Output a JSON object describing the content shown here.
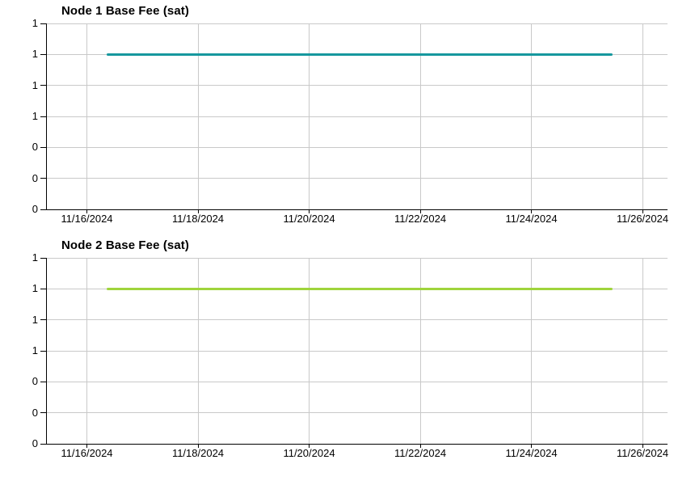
{
  "page": {
    "background_color": "#ffffff",
    "gridline_color": "#c9c9c9",
    "axis_color": "#000000",
    "text_color": "#000000"
  },
  "chart_data": [
    {
      "type": "line",
      "title": "Node 1 Base Fee (sat)",
      "xlabel": "",
      "ylabel": "",
      "grid": true,
      "legend": "none",
      "x_axis": {
        "unit": "date",
        "tick_labels": [
          "11/16/2024",
          "11/18/2024",
          "11/20/2024",
          "11/22/2024",
          "11/24/2024",
          "11/26/2024"
        ],
        "tick_positions_days": [
          0,
          2,
          4,
          6,
          8,
          10
        ],
        "range_days": [
          -0.72,
          10.45
        ]
      },
      "y_axis": {
        "tick_labels": [
          "1",
          "1",
          "1",
          "1",
          "0",
          "0",
          "0"
        ],
        "tick_values": [
          1.2,
          1.0,
          0.8,
          0.6,
          0.4,
          0.2,
          0
        ],
        "range": [
          0,
          1.2
        ]
      },
      "series": [
        {
          "name": "Node 1 base fee",
          "color": "#16989e",
          "constant_value_sat": 1,
          "points": [
            {
              "x_day": 0.35,
              "y": 1
            },
            {
              "x_day": 9.46,
              "y": 1
            }
          ]
        }
      ]
    },
    {
      "type": "line",
      "title": "Node 2 Base Fee (sat)",
      "xlabel": "",
      "ylabel": "",
      "grid": true,
      "legend": "none",
      "x_axis": {
        "unit": "date",
        "tick_labels": [
          "11/16/2024",
          "11/18/2024",
          "11/20/2024",
          "11/22/2024",
          "11/24/2024",
          "11/26/2024"
        ],
        "tick_positions_days": [
          0,
          2,
          4,
          6,
          8,
          10
        ],
        "range_days": [
          -0.72,
          10.45
        ]
      },
      "y_axis": {
        "tick_labels": [
          "1",
          "1",
          "1",
          "1",
          "0",
          "0",
          "0"
        ],
        "tick_values": [
          1.2,
          1.0,
          0.8,
          0.6,
          0.4,
          0.2,
          0
        ],
        "range": [
          0,
          1.2
        ]
      },
      "series": [
        {
          "name": "Node 2 base fee",
          "color": "#9fd43c",
          "constant_value_sat": 1,
          "points": [
            {
              "x_day": 0.35,
              "y": 1
            },
            {
              "x_day": 9.46,
              "y": 1
            }
          ]
        }
      ]
    }
  ]
}
